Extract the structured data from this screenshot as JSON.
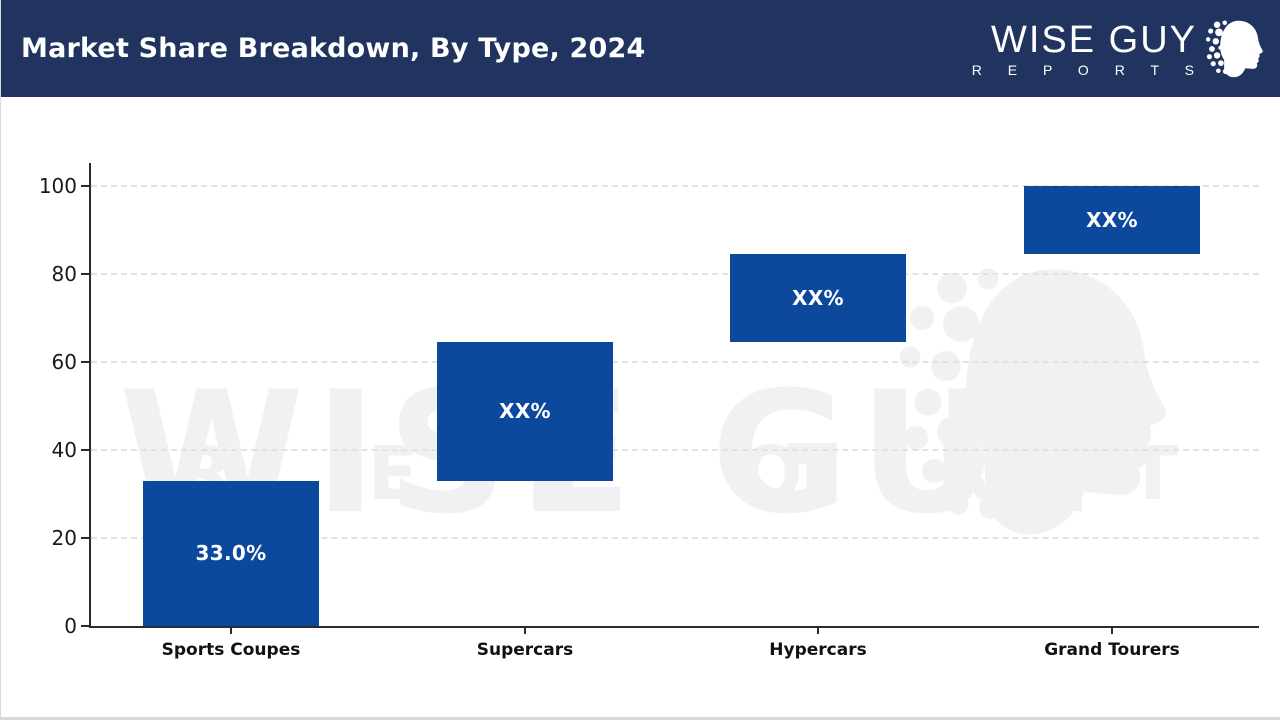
{
  "header": {
    "title": "Market Share Breakdown, By Type, 2024",
    "logo": {
      "name_line": "WISE GUY",
      "sub_line": "R E P O R T S"
    }
  },
  "watermark": {
    "name_line": "WISE GUY",
    "sub_line": "R E P O R T S"
  },
  "colors": {
    "header_bg": "#20345f",
    "bar_fill": "#0c499d",
    "bar_label_text": "#ffffff",
    "gridline": "#e2e2e2",
    "axis": "#2b2b2b",
    "tick_label": "#1a1a1a",
    "watermark": "#f1f1f3",
    "page_border": "#d9d9d9"
  },
  "chart_data": {
    "type": "bar",
    "subtype": "floating-waterfall",
    "title": "Market Share Breakdown, By Type, 2024",
    "categories": [
      "Sports Coupes",
      "Supercars",
      "Hypercars",
      "Grand Tourers"
    ],
    "segments": [
      {
        "category": "Sports Coupes",
        "start": 0,
        "end": 33.0,
        "label": "33.0%"
      },
      {
        "category": "Supercars",
        "start": 33.0,
        "end": 64.5,
        "label": "XX%"
      },
      {
        "category": "Hypercars",
        "start": 64.5,
        "end": 84.5,
        "label": "XX%"
      },
      {
        "category": "Grand Tourers",
        "start": 84.5,
        "end": 100.0,
        "label": "XX%"
      }
    ],
    "xlabel": "",
    "ylabel": "",
    "ylim": [
      0,
      105
    ],
    "yticks": [
      0,
      20,
      40,
      60,
      80,
      100
    ],
    "grid": "horizontal-dashed",
    "legend_position": "none"
  }
}
